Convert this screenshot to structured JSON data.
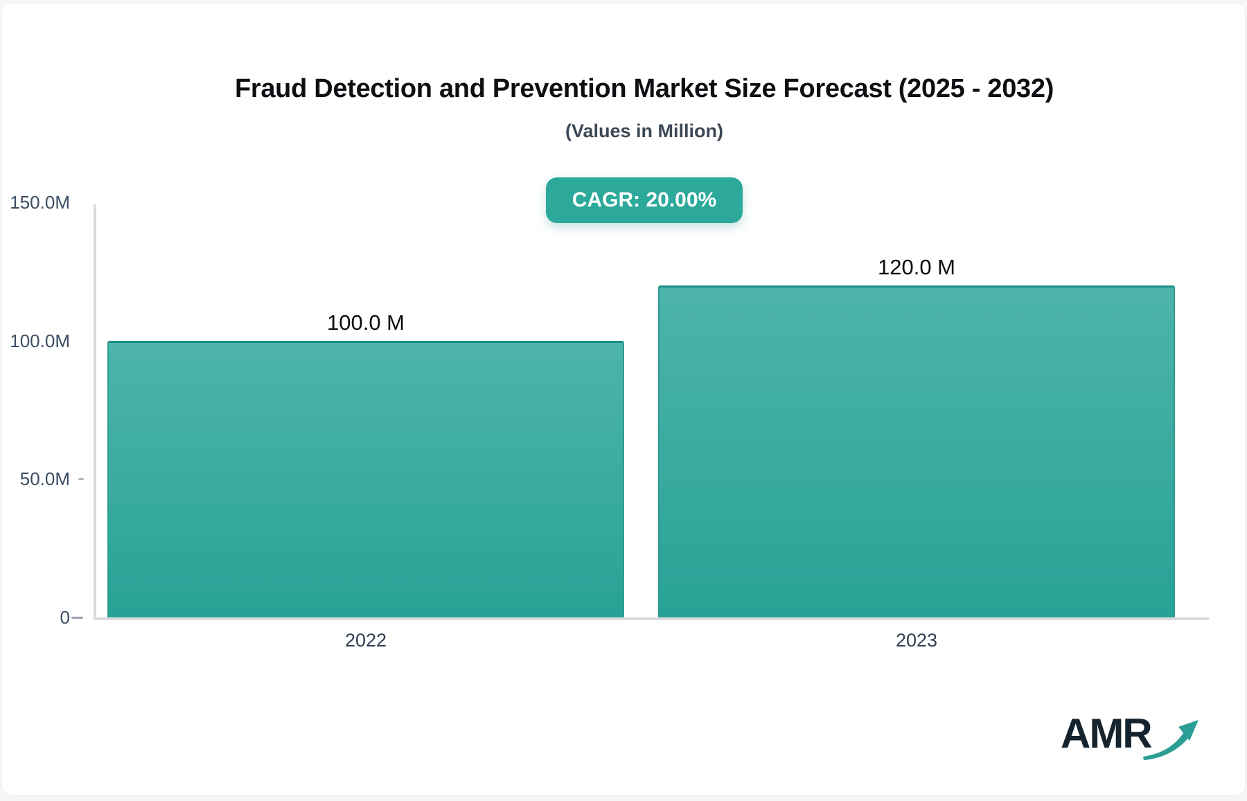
{
  "header": {
    "title": "Fraud Detection and Prevention Market Size Forecast (2025 - 2032)",
    "subtitle": "(Values in Million)",
    "cagr_badge": "CAGR: 20.00%"
  },
  "footer": {
    "logo_text": "AMR"
  },
  "chart_data": {
    "type": "bar",
    "title": "Fraud Detection and Prevention Market Size Forecast (2025 - 2032)",
    "subtitle": "(Values in Million)",
    "unit": "Million",
    "cagr": "20.00%",
    "categories": [
      "2022",
      "2023"
    ],
    "values": [
      100.0,
      120.0
    ],
    "bar_labels": [
      "100.0 M",
      "120.0 M"
    ],
    "ylim": [
      0,
      150
    ],
    "y_ticks": [
      {
        "label": "150.0M",
        "value": 150,
        "tick": "none"
      },
      {
        "label": "100.0M",
        "value": 100,
        "tick": "none"
      },
      {
        "label": "50.0M",
        "value": 50,
        "tick": "short"
      },
      {
        "label": "0",
        "value": 0,
        "tick": "long"
      }
    ],
    "grid": false,
    "legend_position": "none",
    "colors": {
      "page_bg": "#f5f6f8",
      "card_bg": "#ffffff",
      "title": "#0d0f13",
      "subtitle": "#3d4756",
      "badge_bg": "#2ca99b",
      "badge_text": "#ffffff",
      "axis_line": "#d9dbe1",
      "tick_long": "#9aa1ac",
      "tick_short": "#b4bac3",
      "y_label": "#3c4d63",
      "x_label": "#303d52",
      "value_label": "#0b0c0e",
      "bar_top": "#4db4aa",
      "bar_bottom": "#28a296",
      "bar_border": "#2f9c92",
      "bar_border_top": "#1b8e84",
      "logo_text": "#15232e",
      "logo_arrow": "#2b9f95"
    }
  }
}
